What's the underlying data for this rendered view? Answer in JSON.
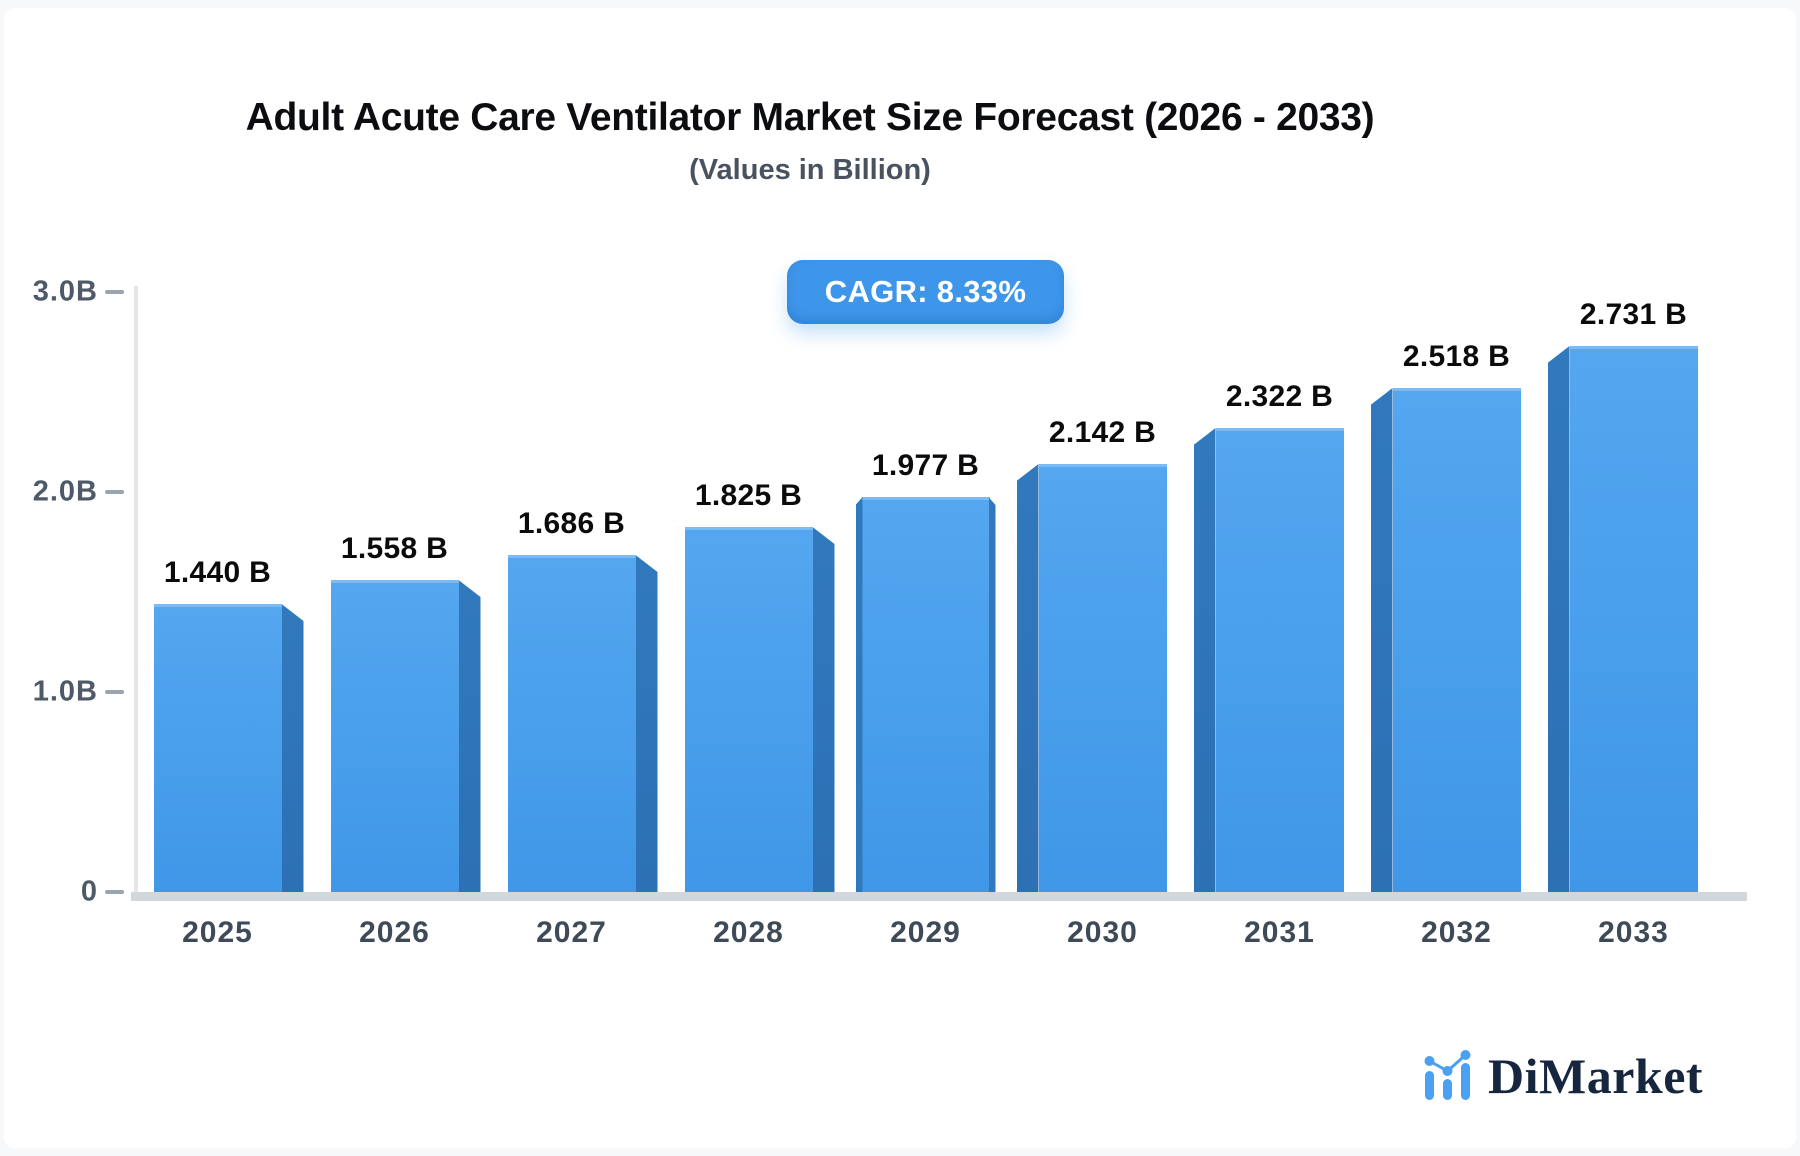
{
  "page": {
    "title": "Adult Acute Care Ventilator Market Size Forecast (2026 - 2033)",
    "subtitle": "(Values in Billion)",
    "cagr_badge": "CAGR: 8.33%"
  },
  "chart_data": {
    "type": "bar",
    "title": "Adult Acute Care Ventilator Market Size Forecast (2026 - 2033)",
    "subtitle": "(Values in Billion)",
    "categories": [
      "2025",
      "2026",
      "2027",
      "2028",
      "2029",
      "2030",
      "2031",
      "2032",
      "2033"
    ],
    "values": [
      1.44,
      1.558,
      1.686,
      1.825,
      1.977,
      2.142,
      2.322,
      2.518,
      2.731
    ],
    "bar_labels": [
      "1.440 B",
      "1.558 B",
      "1.686 B",
      "1.825 B",
      "1.977 B",
      "2.142 B",
      "2.322 B",
      "2.518 B",
      "2.731 B"
    ],
    "xlabel": "",
    "ylabel": "",
    "ylim": [
      0,
      3.0
    ],
    "y_ticks": [
      {
        "label": "3.0B",
        "value": 3.0
      },
      {
        "label": "2.0B",
        "value": 2.0
      },
      {
        "label": "1.0B",
        "value": 1.0
      },
      {
        "label": "0",
        "value": 0
      }
    ],
    "grid": false,
    "legend": false,
    "annotations": [
      "CAGR: 8.33%"
    ]
  },
  "colors": {
    "bar_face": "#4aa0ec",
    "bar_side": "#2e74b8",
    "badge_bg": "#3e96eb",
    "badge_text": "#ffffff",
    "axis_line": "#d2d7db",
    "tick_text": "#4e5a67",
    "year_text": "#3e4a57",
    "value_text": "#0b0b0d",
    "brand_blue": "#4aa0f2",
    "brand_navy": "#15263e",
    "page_bg": "#f6f8f9",
    "card_bg": "#ffffff"
  },
  "brand": {
    "name": "DiMarket"
  }
}
